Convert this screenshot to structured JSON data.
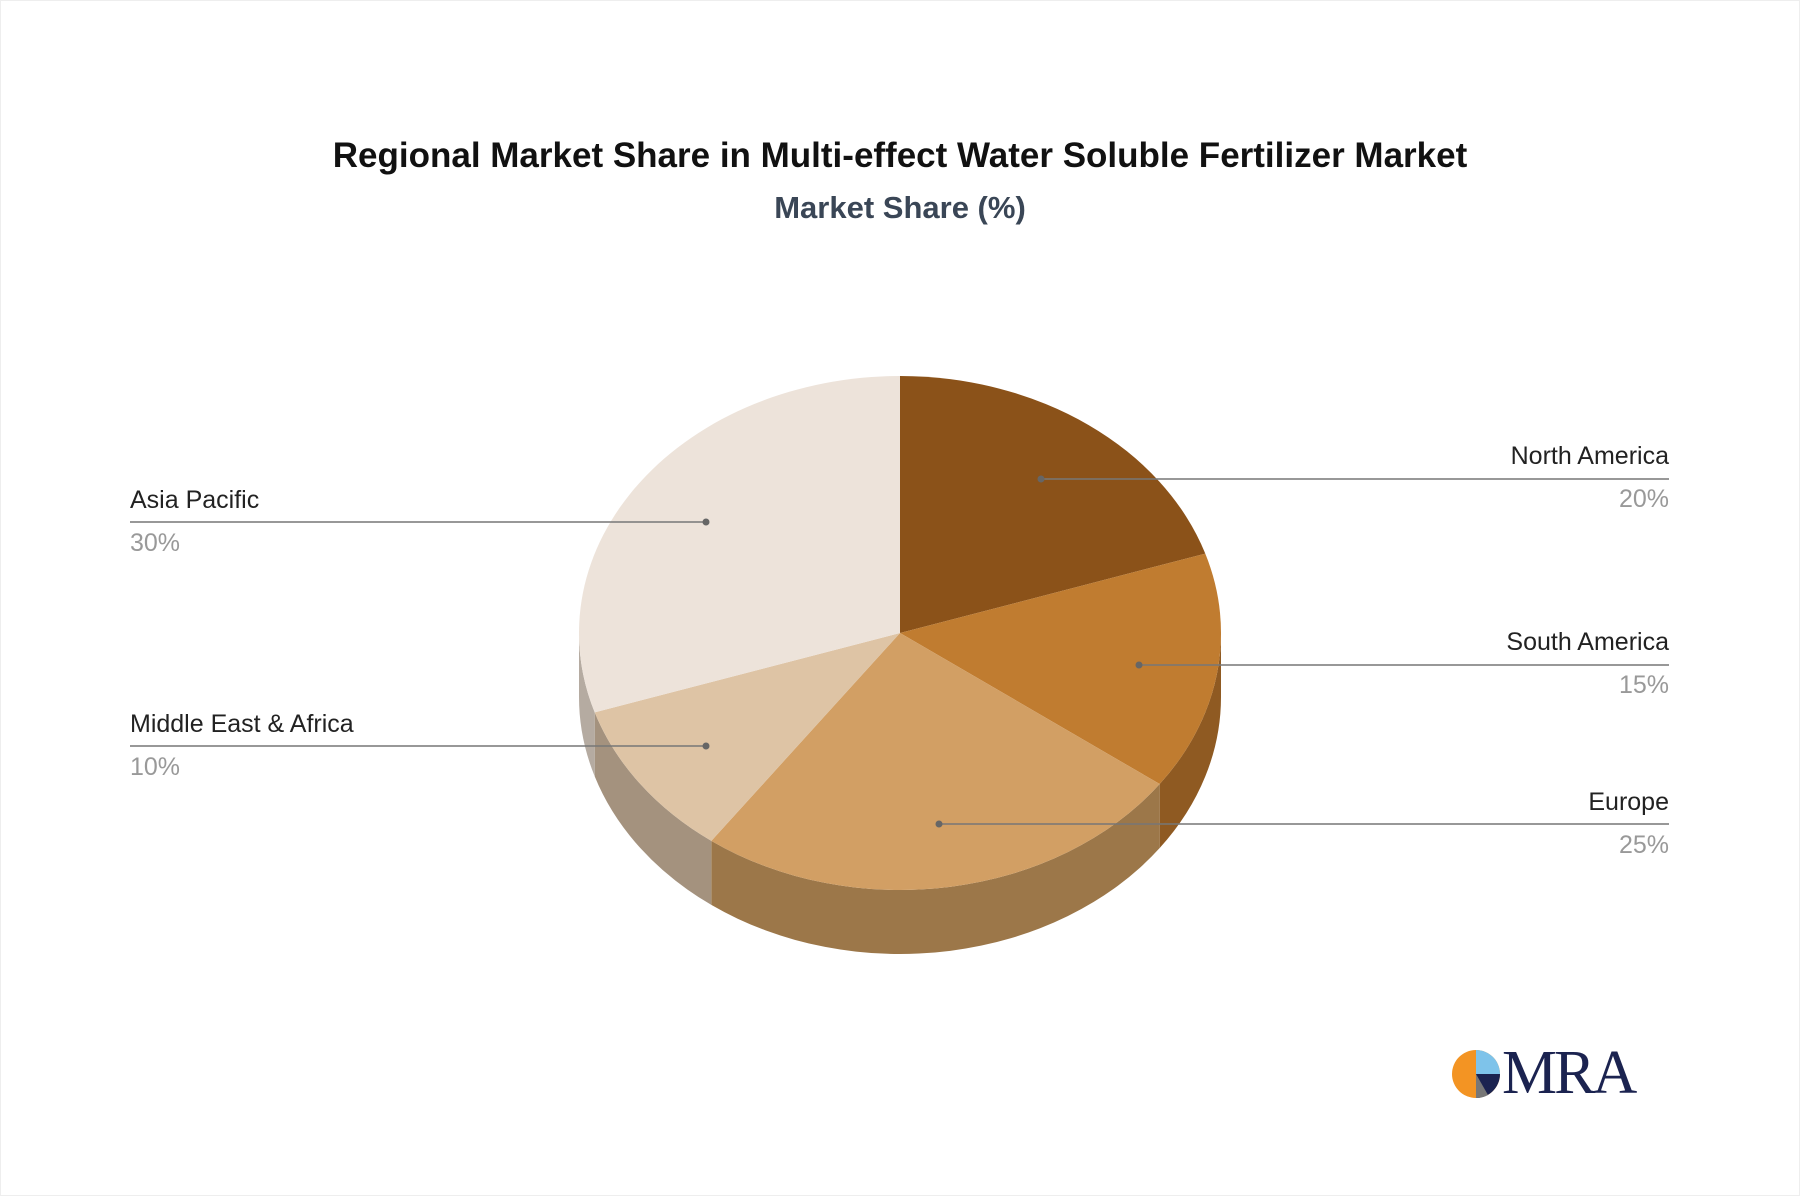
{
  "chart_data": {
    "type": "pie",
    "style": "3d",
    "title": "Regional Market Share in Multi-effect Water Soluble Fertilizer Market",
    "subtitle": "Market Share (%)",
    "categories": [
      "North America",
      "South America",
      "Europe",
      "Middle East & Africa",
      "Asia Pacific"
    ],
    "values": [
      20,
      15,
      25,
      10,
      30
    ],
    "value_labels": [
      "20%",
      "15%",
      "25%",
      "10%",
      "30%"
    ],
    "colors": [
      "#8B5219",
      "#C07C30",
      "#D29F64",
      "#DEC4A5",
      "#EDE3DA"
    ],
    "side_colors": [
      "#6E4216",
      "#8F5A22",
      "#9C7749",
      "#A4927E",
      "#B5ABA1"
    ]
  },
  "logo": {
    "text": "MRA",
    "accent": "#F39423"
  }
}
